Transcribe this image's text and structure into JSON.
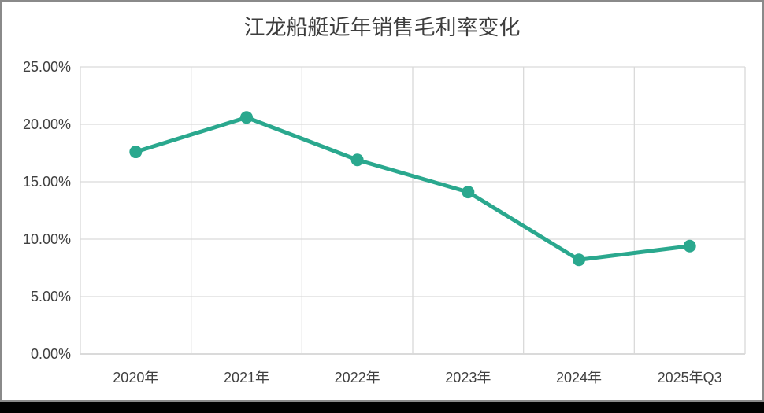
{
  "chart_data": {
    "type": "line",
    "title": "江龙船艇近年销售毛利率变化",
    "categories": [
      "2020年",
      "2021年",
      "2022年",
      "2023年",
      "2024年",
      "2025年Q3"
    ],
    "values": [
      17.6,
      20.6,
      16.9,
      14.1,
      8.2,
      9.4
    ],
    "unit": "%",
    "ylim": [
      0,
      25
    ],
    "y_tick_interval": 5,
    "y_tick_labels": [
      "0.00%",
      "5.00%",
      "10.00%",
      "15.00%",
      "20.00%",
      "25.00%"
    ],
    "grid": true,
    "legend_visible": false,
    "colors": {
      "line": "#2aa88e",
      "marker": "#2aa88e",
      "gridline": "#d9d9d9",
      "baseline": "#c4c4c4",
      "axis_text": "#404040",
      "title_text": "#3d3d3d",
      "panel_border": "#8a8a8a",
      "panel_background": "#ffffff",
      "outer_band": "#000000"
    }
  }
}
